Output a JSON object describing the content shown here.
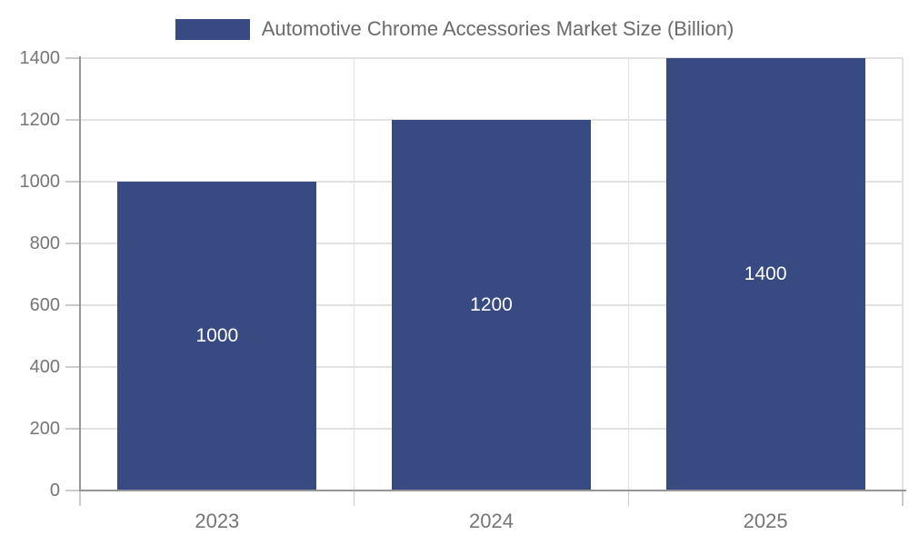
{
  "legend": {
    "label": "Automotive Chrome Accessories Market Size (Billion)"
  },
  "chart_data": {
    "type": "bar",
    "title": "",
    "categories": [
      "2023",
      "2024",
      "2025"
    ],
    "series": [
      {
        "name": "Automotive Chrome Accessories Market Size (Billion)",
        "values": [
          1000,
          1200,
          1400
        ]
      }
    ],
    "values": [
      1000,
      1200,
      1400
    ],
    "bar_value_labels": [
      "1000",
      "1200",
      "1400"
    ],
    "value_label_position": "inside-center",
    "xlabel": "",
    "ylabel": "",
    "ylim": [
      0,
      1400
    ],
    "yticks": [
      0,
      200,
      400,
      600,
      800,
      1000,
      1200,
      1400
    ],
    "grid": true,
    "legend_position": "top-center",
    "bar_color": "#374a82"
  },
  "colors": {
    "bar": "#374a82",
    "bar_label": "#ffffff",
    "axis_line": "#969696",
    "gridline": "#e2e2e2",
    "tick_mark": "#cbcbcb",
    "tick_label": "#757575",
    "legend_text": "#6b6b6b",
    "background": "#ffffff"
  }
}
